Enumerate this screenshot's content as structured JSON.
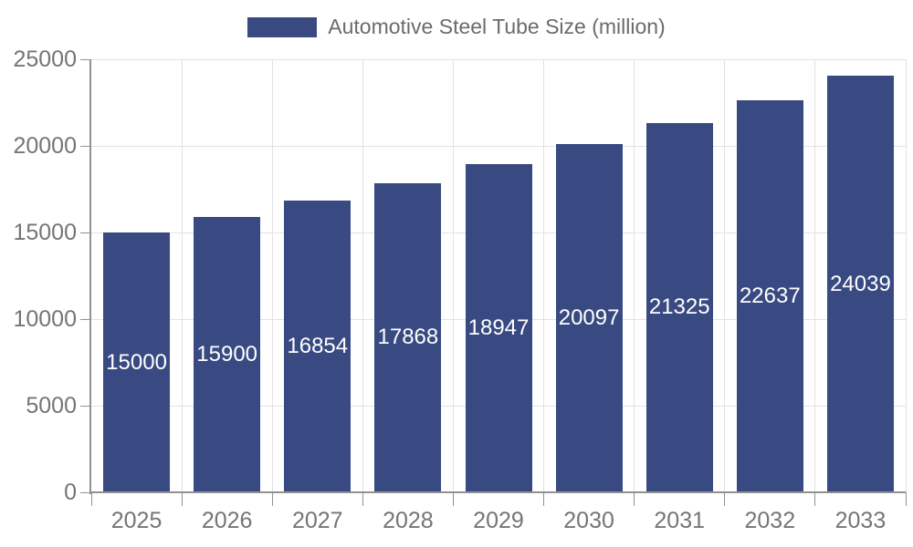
{
  "legend": {
    "label": "Automotive Steel Tube Size (million)"
  },
  "chart_data": {
    "type": "bar",
    "title": "Automotive Steel Tube Size (million)",
    "series_name": "Automotive Steel Tube Size (million)",
    "categories": [
      "2025",
      "2026",
      "2027",
      "2028",
      "2029",
      "2030",
      "2031",
      "2032",
      "2033"
    ],
    "values": [
      15000,
      15900,
      16854,
      17868,
      18947,
      20097,
      21325,
      22637,
      24039
    ],
    "data_labels_shown": true,
    "xlabel": "",
    "ylabel": "",
    "ylim": [
      0,
      25000
    ],
    "y_ticks": [
      0,
      5000,
      10000,
      15000,
      20000,
      25000
    ],
    "grid": true,
    "legend_position": "top-center",
    "colors": {
      "bar": "#384a81",
      "data_label": "#ffffff",
      "axis_label": "#757575",
      "legend_text": "#6b6b6b",
      "gridline": "#e2e2e6",
      "axis_line": "#919191",
      "background": "#ffffff"
    }
  }
}
